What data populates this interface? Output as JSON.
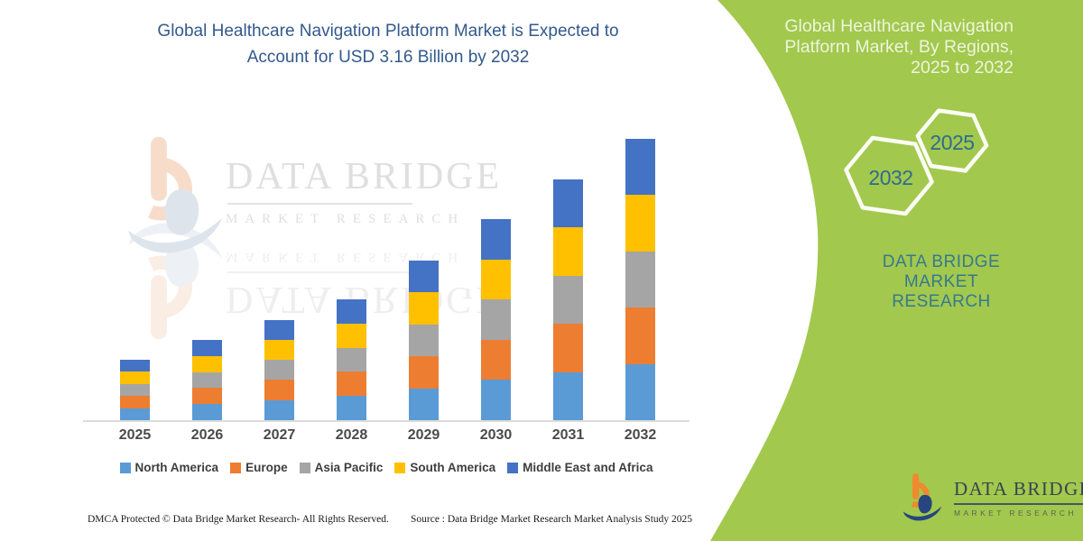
{
  "title": {
    "line1": "Global Healthcare Navigation Platform Market is Expected to",
    "line2": "Account for USD 3.16 Billion by 2032"
  },
  "chart_data": {
    "type": "bar",
    "stacked": true,
    "title": "Global Healthcare Navigation Platform Market is Expected to Account for USD 3.16 Billion by 2032",
    "unit": "USD Billion",
    "categories": [
      "2025",
      "2026",
      "2027",
      "2028",
      "2029",
      "2030",
      "2031",
      "2032"
    ],
    "series": [
      {
        "name": "North America",
        "color": "#5B9BD5",
        "values": [
          0.136,
          0.18,
          0.226,
          0.272,
          0.36,
          0.452,
          0.542,
          0.632
        ]
      },
      {
        "name": "Europe",
        "color": "#ED7D31",
        "values": [
          0.136,
          0.18,
          0.226,
          0.272,
          0.36,
          0.452,
          0.542,
          0.632
        ]
      },
      {
        "name": "Asia Pacific",
        "color": "#A5A5A5",
        "values": [
          0.136,
          0.18,
          0.226,
          0.272,
          0.36,
          0.452,
          0.542,
          0.632
        ]
      },
      {
        "name": "South America",
        "color": "#FFC000",
        "values": [
          0.136,
          0.18,
          0.226,
          0.272,
          0.36,
          0.452,
          0.542,
          0.632
        ]
      },
      {
        "name": "Middle East and Africa",
        "color": "#4472C4",
        "values": [
          0.136,
          0.18,
          0.226,
          0.272,
          0.36,
          0.452,
          0.542,
          0.632
        ]
      }
    ],
    "totals_usd_billion": [
      0.68,
      0.9,
      1.13,
      1.36,
      1.8,
      2.26,
      2.71,
      3.16
    ],
    "y_axis_visible": false,
    "gridlines": false,
    "x_axis_line": true,
    "legend_position": "bottom"
  },
  "watermark": {
    "name": "DATA BRIDGE",
    "sub": "MARKET RESEARCH"
  },
  "panel": {
    "heading_lines": [
      "Global Healthcare Navigation",
      "Platform Market, By Regions,",
      "2025 to 2032"
    ],
    "hex_end_year": "2032",
    "hex_start_year": "2025",
    "brand_line1": "DATA BRIDGE MARKET",
    "brand_line2": "RESEARCH",
    "colors": {
      "bg": "#A2C84E",
      "heading": "#EDF5DC",
      "brand_text": "#36798F",
      "hex_text": "#2F6C8C",
      "hex_stroke": "#FBFDF4"
    }
  },
  "logo": {
    "name": "DATA BRIDGE",
    "sub": "MARKET RESEARCH"
  },
  "footer": {
    "left": "DMCA Protected © Data Bridge Market Research- All Rights Reserved.",
    "right": "Source : Data Bridge Market Research Market Analysis Study 2025"
  }
}
